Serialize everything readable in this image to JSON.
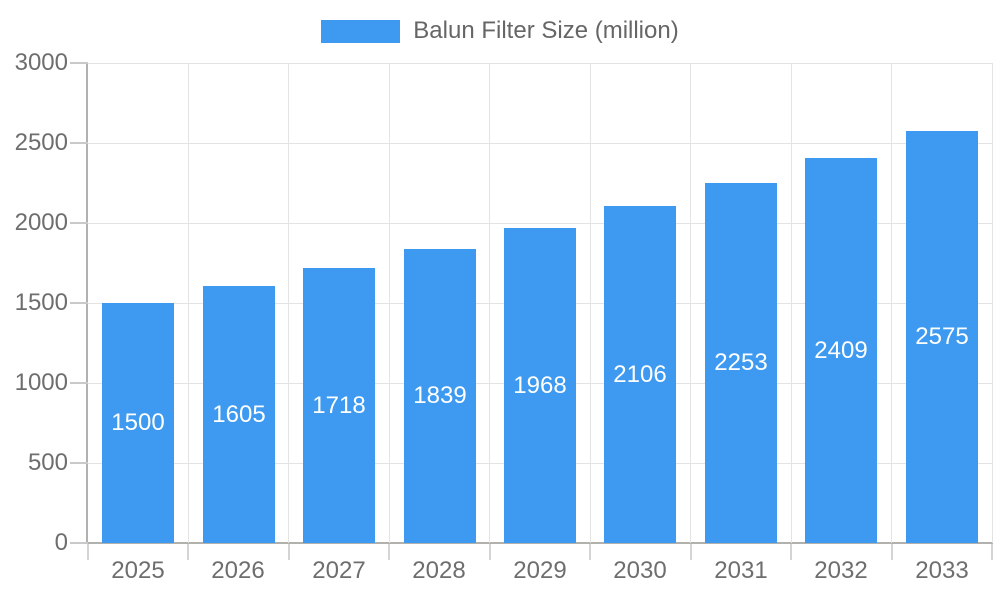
{
  "chart_data": {
    "type": "bar",
    "title": "Balun Filter Size (million)",
    "legend": {
      "position": "top-center",
      "entries": [
        "Balun Filter Size (million)"
      ]
    },
    "categories": [
      "2025",
      "2026",
      "2027",
      "2028",
      "2029",
      "2030",
      "2031",
      "2032",
      "2033"
    ],
    "series": [
      {
        "name": "Balun Filter Size (million)",
        "values": [
          1500,
          1605,
          1718,
          1839,
          1968,
          2106,
          2253,
          2409,
          2575
        ]
      }
    ],
    "xlabel": "",
    "ylabel": "",
    "ylim": [
      0,
      3000
    ],
    "yticks": [
      0,
      500,
      1000,
      1500,
      2000,
      2500,
      3000
    ],
    "grid": true,
    "value_labels_position": "inside-center",
    "style": {
      "bar_color": "#3D9AF0",
      "value_label_color": "#ffffff",
      "axis_line_color": "#b3b1ae",
      "gridline_color": "#e3e3e3",
      "tick_color": "#c9c9c9",
      "tick_label_color": "#6e6e6e",
      "legend_text_color": "#666666",
      "background": "#ffffff"
    }
  }
}
